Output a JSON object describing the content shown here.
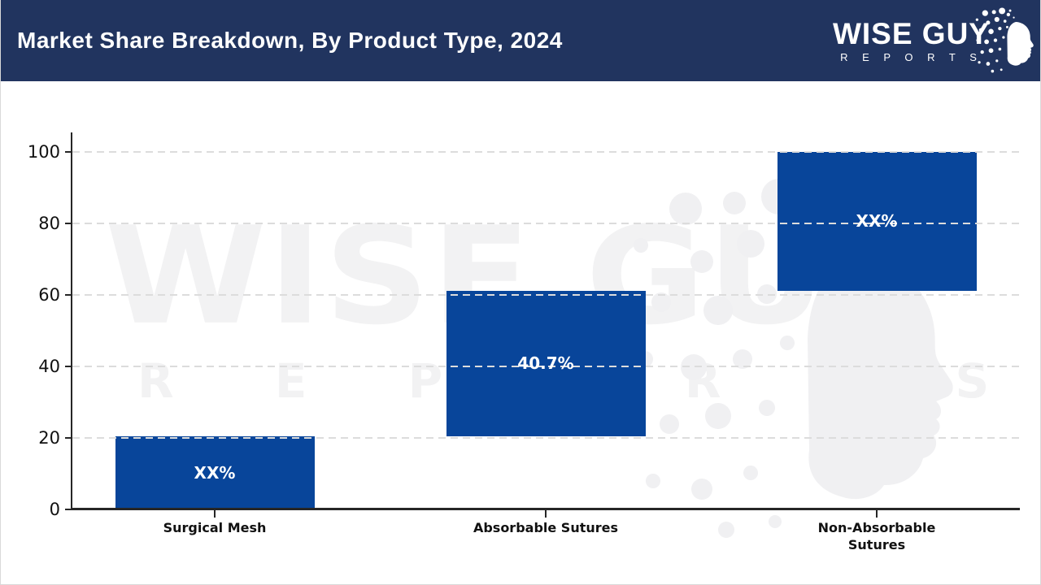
{
  "header": {
    "title": "Market Share Breakdown, By Product Type, 2024",
    "logo": {
      "line1": "WISE GUY",
      "line2": "R E P O R T S"
    },
    "bg_color": "#21345f"
  },
  "watermark": {
    "line1": "WISE GUY",
    "line2": "R E P O R T S"
  },
  "chart_data": {
    "type": "bar",
    "subtype": "stacked-waterfall-percentage",
    "title": "Market Share Breakdown, By Product Type, 2024",
    "categories": [
      "Surgical Mesh",
      "Absorbable Sutures",
      "Non-Absorbable Sutures"
    ],
    "bars": [
      {
        "category": "Surgical Mesh",
        "label": "XX%",
        "start": 0,
        "end": 20.5
      },
      {
        "category": "Absorbable Sutures",
        "label": "40.7%",
        "start": 20.5,
        "end": 61.2
      },
      {
        "category": "Non-Absorbable Sutures",
        "label": "XX%",
        "start": 61.2,
        "end": 100
      }
    ],
    "yticks": [
      0,
      20,
      40,
      60,
      80,
      100
    ],
    "ylim": [
      0,
      105
    ],
    "xlabel": "",
    "ylabel": "",
    "legend": "none",
    "grid": "dashed-horizontal",
    "bar_color": "#08459a",
    "grid_color": "#dcdcdc",
    "axis_color": "#262626",
    "label_color_on_bar": "#ffffff"
  }
}
